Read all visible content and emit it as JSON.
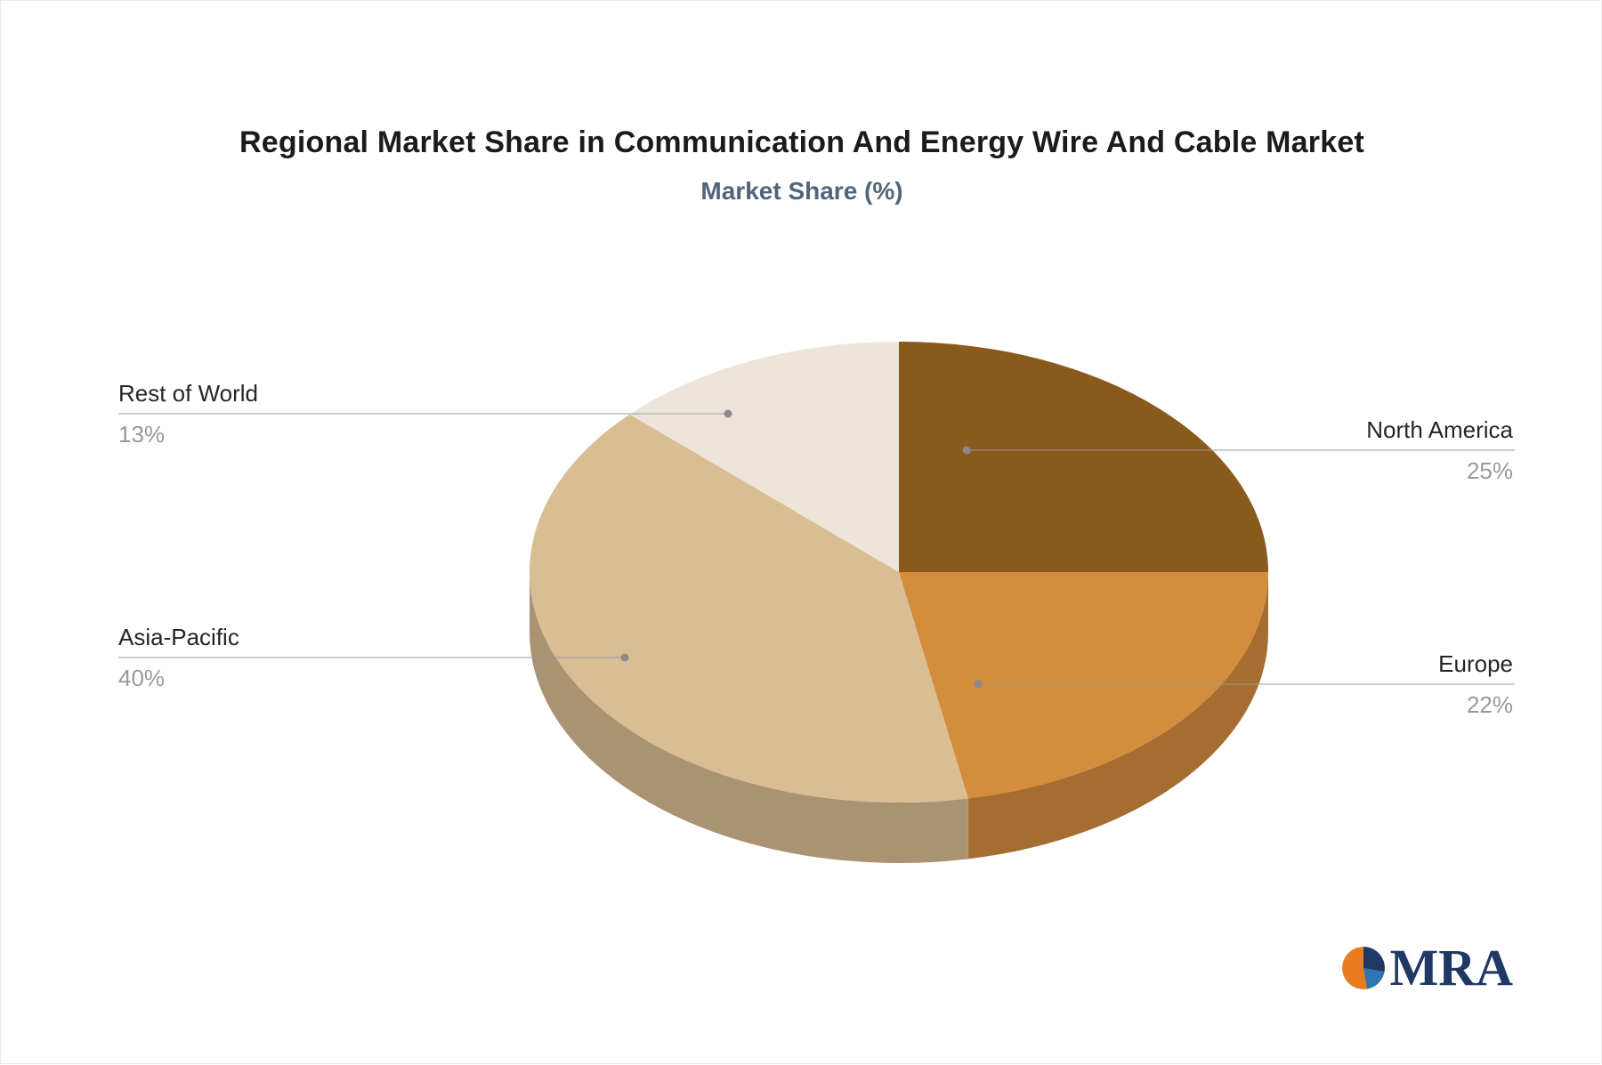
{
  "page": {
    "background": "#ffffff"
  },
  "chart_data": {
    "type": "pie",
    "style": "3d",
    "title": "Regional Market Share in Communication And Energy Wire And Cable Market",
    "subtitle": "Market Share (%)",
    "unit": "%",
    "categories": [
      "North America",
      "Europe",
      "Asia-Pacific",
      "Rest of World"
    ],
    "values": [
      25,
      22,
      40,
      13
    ],
    "value_labels": [
      "25%",
      "22%",
      "40%",
      "13%"
    ],
    "colors": [
      "#8A591C",
      "#D48C3D",
      "#D9BD93",
      "#EDE5DA"
    ],
    "start_angle_deg": 0,
    "direction": "clockwise",
    "legend": "none",
    "label_style": "callout-lines-with-dots",
    "leader_line_color": "#9b9b9b",
    "leader_dot_color": "#8b8b8b"
  },
  "text_colors": {
    "title": "#1b1b1b",
    "subtitle": "#50657C",
    "category_label": "#262626",
    "value_label": "#999999"
  },
  "brand": {
    "text": "MRA",
    "text_color": "#1F3864",
    "icon": "pie-chart-mark",
    "icon_colors": [
      "#E87D1E",
      "#1F3864",
      "#2E75B6"
    ]
  }
}
